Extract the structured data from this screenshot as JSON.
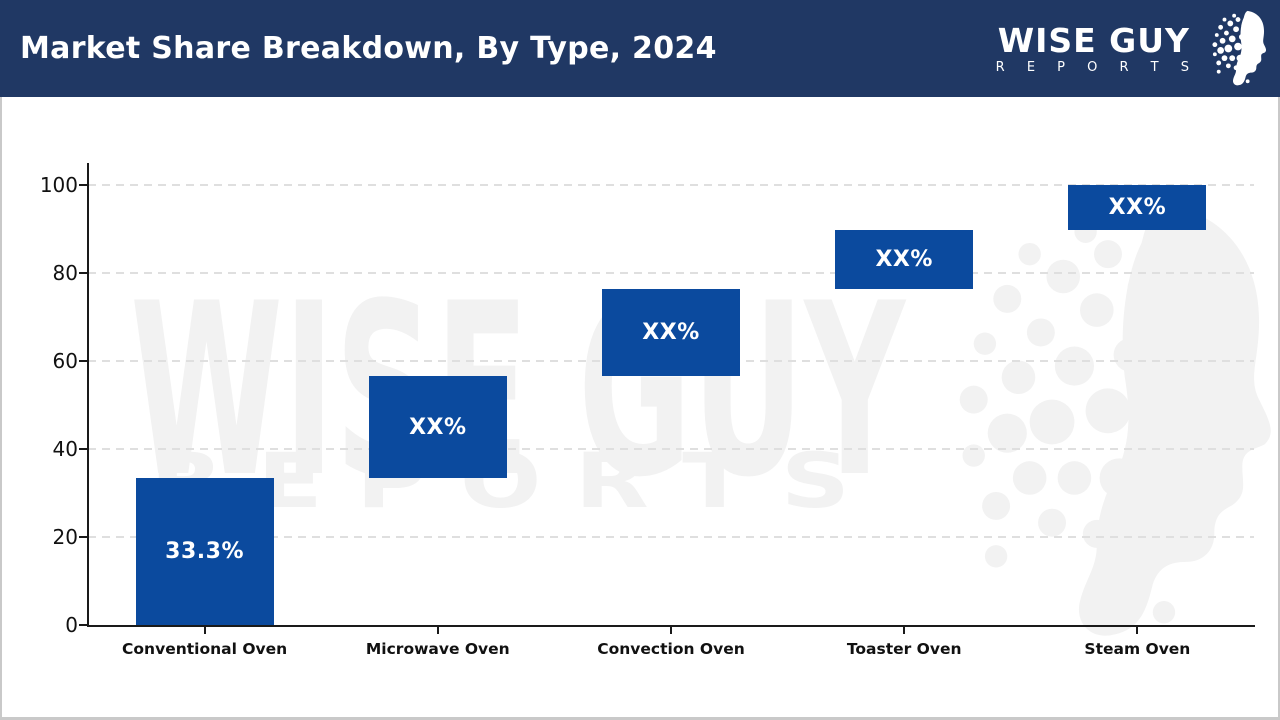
{
  "header": {
    "title": "Market Share Breakdown, By Type, 2024",
    "bg_color": "#203864",
    "logo": {
      "line1": "WISE GUY",
      "line2": "R E P O R T S"
    }
  },
  "watermark": {
    "line1": "WISE GUY",
    "line2": "R E P O R T S",
    "color": "#f2f2f2"
  },
  "chart_data": {
    "type": "bar",
    "subtype": "waterfall",
    "title": "Market Share Breakdown, By Type, 2024",
    "categories": [
      "Conventional Oven",
      "Microwave Oven",
      "Convection Oven",
      "Toaster Oven",
      "Steam Oven"
    ],
    "segments": [
      {
        "label": "33.3%",
        "start": 0,
        "end": 33.3
      },
      {
        "label": "XX%",
        "start": 33.3,
        "end": 56.5
      },
      {
        "label": "XX%",
        "start": 56.5,
        "end": 76.4
      },
      {
        "label": "XX%",
        "start": 76.4,
        "end": 89.8
      },
      {
        "label": "XX%",
        "start": 89.8,
        "end": 100
      }
    ],
    "yticks": [
      0,
      20,
      40,
      60,
      80,
      100
    ],
    "ylim": [
      0,
      105
    ],
    "xlabel": "",
    "ylabel": "",
    "grid": "horizontal-dashed",
    "legend": "none",
    "bar_color": "#0b4a9e",
    "bar_label_color": "#ffffff"
  }
}
